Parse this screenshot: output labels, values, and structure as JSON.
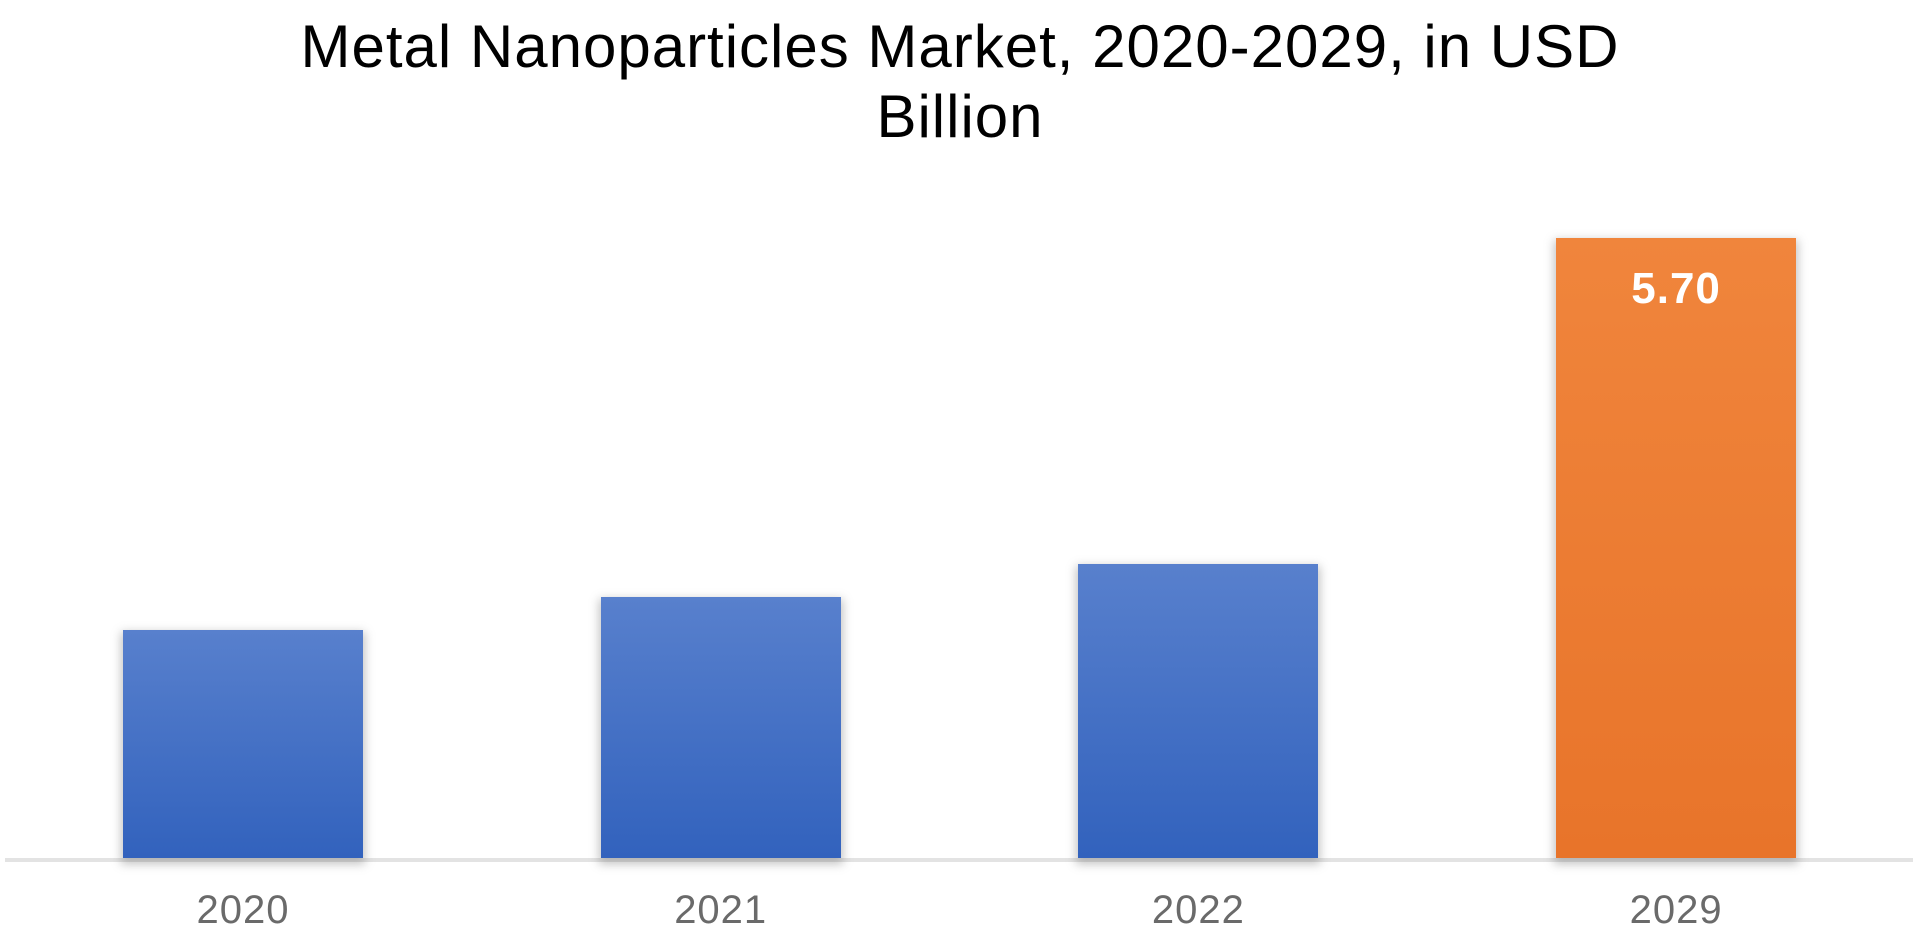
{
  "chart_data": {
    "type": "bar",
    "title": "Metal Nanoparticles Market, 2020-2029, in USD Billion",
    "title_lines": [
      "Metal Nanoparticles Market, 2020-2029, in USD",
      "Billion"
    ],
    "categories": [
      "2020",
      "2021",
      "2022",
      "2029"
    ],
    "values": [
      2.1,
      2.4,
      2.7,
      5.7
    ],
    "data_labels": [
      "",
      "",
      "",
      "5.70"
    ],
    "unit": "USD Billion",
    "xlabel": "",
    "ylabel": "",
    "ylim": [
      0,
      6.2
    ],
    "grid": false,
    "legend_position": "none",
    "colors": {
      "bar_default_top": "#5880cd",
      "bar_default_bottom": "#3262bd",
      "bar_highlight_top": "#f0853c",
      "bar_highlight_bottom": "#e8742a",
      "highlight_index": 3,
      "axis_line": "#e3e3e3",
      "tick_label": "#6a6a6a",
      "data_label": "#ffffff",
      "title": "#000000",
      "background": "#ffffff"
    }
  }
}
